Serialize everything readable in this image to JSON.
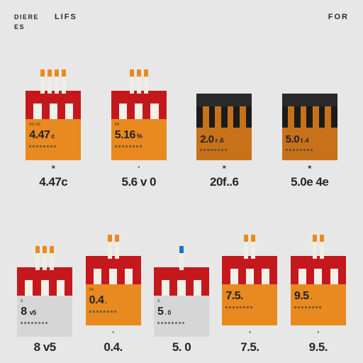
{
  "background_color": "#e7e7e7",
  "header": {
    "left": [
      {
        "line1": "DIERE",
        "line2": "ES"
      },
      {
        "line1": "LIFS",
        "line2": ""
      }
    ],
    "right": [
      {
        "line1": "FOR",
        "line2": ""
      }
    ]
  },
  "colors": {
    "red": "#c5181d",
    "cream": "#f3f0e8",
    "orange": "#e88a1f",
    "dark_orange": "#c7711a",
    "gray_body": "#d6d6d6",
    "dark": "#2a2a2a",
    "blue": "#1976c4"
  },
  "rows": [
    [
      {
        "style": "A",
        "cig_count": 4,
        "filter_color": "#e88a1f",
        "lid_color": "#c5181d",
        "body_color": "#e88a1f",
        "micro1": "PU  42",
        "price_main": "4.47",
        "price_suffix": "c",
        "disp": "4.47c",
        "tiny_icon": "■"
      },
      {
        "style": "A",
        "cig_count": 3,
        "filter_color": "#e88a1f",
        "lid_color": "#c5181d",
        "body_color": "#e88a1f",
        "micro1": "5B  ",
        "price_main": "5.16",
        "price_suffix": "%",
        "disp": "5.6 v 0",
        "tiny_icon": "▪"
      },
      {
        "style": "B",
        "filter_color": "#c7711a",
        "lid_color": "#2a2a2a",
        "body_color": "#c7711a",
        "micro1": "",
        "price_main": "2.0",
        "price_suffix": "r .6",
        "disp": "20f..6",
        "tiny_icon": "■"
      },
      {
        "style": "B",
        "filter_color": "#c7711a",
        "lid_color": "#2a2a2a",
        "body_color": "#c7711a",
        "micro1": "",
        "price_main": "5.0",
        "price_suffix": "t .4",
        "disp": "5.0e  4e",
        "tiny_icon": "■"
      }
    ],
    [
      {
        "style": "C",
        "cig_count": 3,
        "filter_color": "#e88a1f",
        "lid_color": "#c5181d",
        "body_color": "#d6d6d6",
        "micro1": "8  ",
        "price_main": "8",
        "price_suffix": " v5",
        "disp": "8 v5",
        "tiny_icon": ""
      },
      {
        "style": "A",
        "cig_count": 2,
        "filter_color": "#e88a1f",
        "lid_color": "#c5181d",
        "body_color": "#e88a1f",
        "micro1": "04. ",
        "price_main": "0.4",
        "price_suffix": ".",
        "disp": "0.4.",
        "tiny_icon": "▪"
      },
      {
        "style": "D",
        "cig_count": 1,
        "filter_color": "#1976c4",
        "lid_color": "#c5181d",
        "body_color": "#d6d6d6",
        "micro1": "S.  ",
        "price_main": "5",
        "price_suffix": ". 0",
        "disp": "5. 0",
        "tiny_icon": ""
      },
      {
        "style": "A",
        "cig_count": 2,
        "filter_color": "#e88a1f",
        "lid_color": "#c5181d",
        "body_color": "#e88a1f",
        "micro1": "",
        "price_main": "7.5.",
        "price_suffix": "",
        "disp": "7.5.",
        "tiny_icon": "▪"
      },
      {
        "style": "A",
        "cig_count": 2,
        "filter_color": "#e88a1f",
        "lid_color": "#c5181d",
        "body_color": "#e88a1f",
        "micro1": "",
        "price_main": "9.5",
        "price_suffix": ".",
        "disp": "9.5.",
        "tiny_icon": "▪"
      }
    ]
  ]
}
